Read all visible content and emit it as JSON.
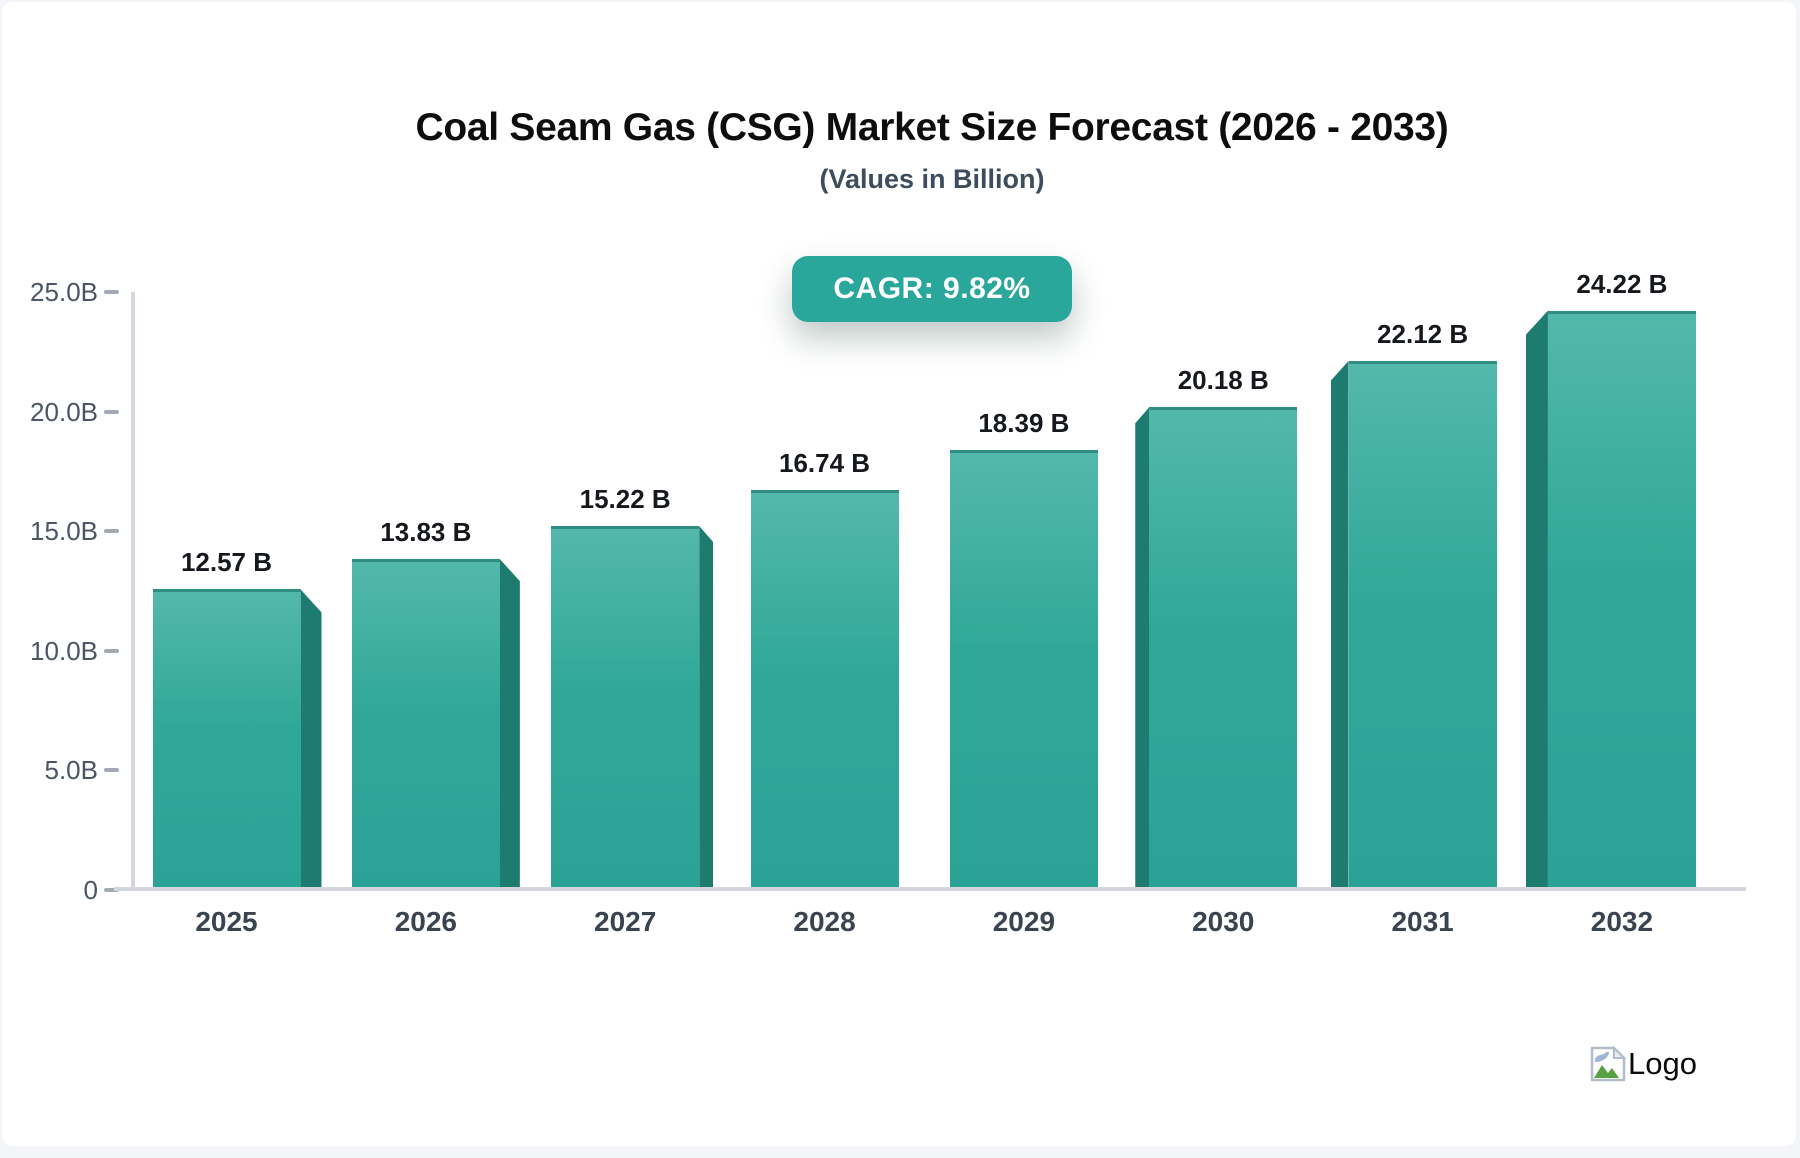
{
  "chart_data": {
    "type": "bar",
    "title": "Coal Seam Gas (CSG) Market Size Forecast (2026 - 2033)",
    "subtitle": "(Values in Billion)",
    "badge_label": "CAGR: 9.82%",
    "categories": [
      "2025",
      "2026",
      "2027",
      "2028",
      "2029",
      "2030",
      "2031",
      "2032"
    ],
    "values": [
      12.57,
      13.83,
      15.22,
      16.74,
      18.39,
      20.18,
      22.12,
      24.22
    ],
    "value_labels": [
      "12.57 B",
      "13.83 B",
      "15.22 B",
      "16.74 B",
      "18.39 B",
      "20.18 B",
      "22.12 B",
      "24.22 B"
    ],
    "unit": "Billion",
    "ylim": [
      0,
      25
    ],
    "yticks": [
      {
        "value": 25,
        "label": "25.0B"
      },
      {
        "value": 20,
        "label": "20.0B"
      },
      {
        "value": 15,
        "label": "15.0B"
      },
      {
        "value": 10,
        "label": "10.0B"
      },
      {
        "value": 5,
        "label": "5.0B"
      },
      {
        "value": 0,
        "label": "0"
      }
    ],
    "grid": false,
    "legend": false,
    "xlabel": "",
    "ylabel": ""
  },
  "colors": {
    "bar_face_top": "#53b8ab",
    "bar_face_mid": "#30a899",
    "bar_face_bottom": "#2aa296",
    "bar_top_edge": "#2f8d81",
    "bar_side": "#1e7b6f",
    "badge_bg": "#2aa79b",
    "axis_line": "#d3d6db",
    "tick_dash": "#a4aab3"
  },
  "logo": {
    "alt_text": "Logo"
  }
}
